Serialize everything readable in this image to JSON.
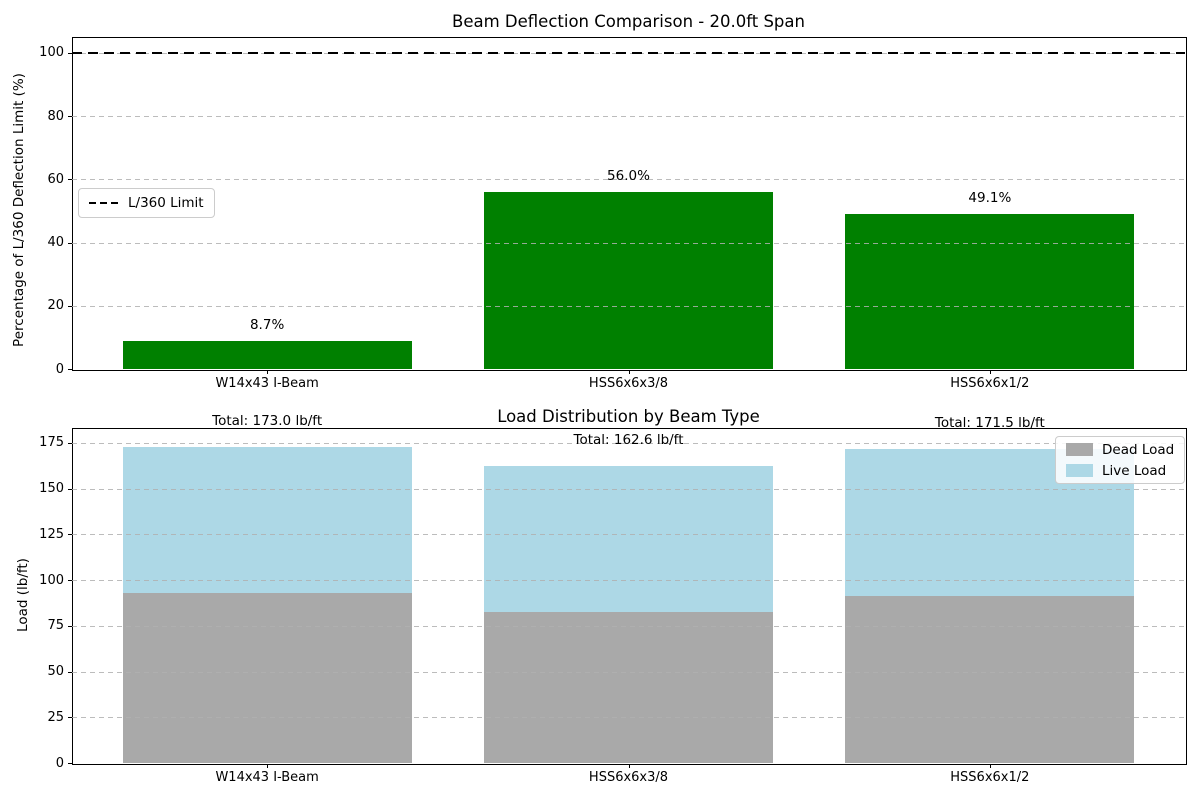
{
  "figure": {
    "background": "#ffffff",
    "grid_color": "#b0b0b0",
    "grid_style": "dashed"
  },
  "chart_data": [
    {
      "type": "bar",
      "title": "Beam Deflection Comparison - 20.0ft Span",
      "ylabel": "Percentage of L/360 Deflection Limit (%)",
      "xlabel": "",
      "categories": [
        "W14x43 I-Beam",
        "HSS6x6x3/8",
        "HSS6x6x1/2"
      ],
      "values": [
        8.7,
        56.0,
        49.1
      ],
      "bar_labels": [
        "8.7%",
        "56.0%",
        "49.1%"
      ],
      "bar_color": "#008000",
      "yticks": [
        0,
        20,
        40,
        60,
        80,
        100
      ],
      "ylim": [
        0,
        105
      ],
      "grid": "horizontal-dashed-above-bars",
      "reference_line": {
        "value": 100,
        "style": "dashed",
        "color": "#000000"
      },
      "legend": {
        "position": "center-left",
        "entries": [
          {
            "label": "L/360 Limit",
            "swatch": "dashed-line",
            "color": "#000000"
          }
        ]
      }
    },
    {
      "type": "stacked-bar",
      "title": "Load Distribution by Beam Type",
      "ylabel": "Load (lb/ft)",
      "xlabel": "",
      "categories": [
        "W14x43 I-Beam",
        "HSS6x6x3/8",
        "HSS6x6x1/2"
      ],
      "series": [
        {
          "name": "Dead Load",
          "color": "#a9a9a9",
          "values": [
            93.0,
            82.6,
            91.5
          ]
        },
        {
          "name": "Live Load",
          "color": "#add8e6",
          "values": [
            80.0,
            80.0,
            80.0
          ]
        }
      ],
      "totals": [
        173.0,
        162.6,
        171.5
      ],
      "total_labels": [
        "Total: 173.0 lb/ft",
        "Total: 162.6 lb/ft",
        "Total: 171.5 lb/ft"
      ],
      "yticks": [
        0,
        25,
        50,
        75,
        100,
        125,
        150,
        175
      ],
      "ylim": [
        0,
        183.2
      ],
      "grid": "horizontal-dashed-above-bars",
      "legend": {
        "position": "upper-right",
        "entries": [
          {
            "label": "Dead Load",
            "swatch": "patch",
            "color": "#a9a9a9"
          },
          {
            "label": "Live Load",
            "swatch": "patch",
            "color": "#add8e6"
          }
        ]
      }
    }
  ]
}
